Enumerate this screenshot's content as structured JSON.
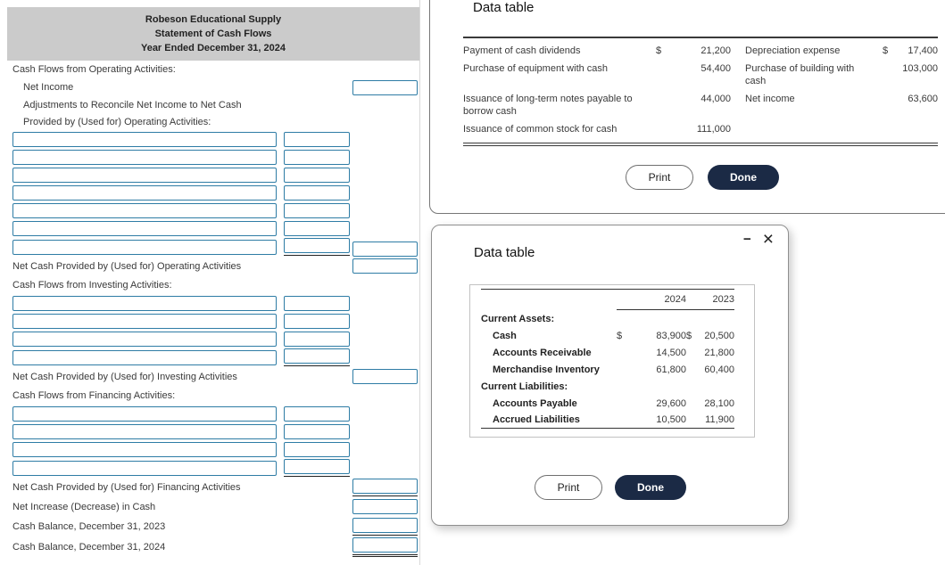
{
  "theme": {
    "input_border": "#2e7ca5",
    "done_button_bg": "#1b2a45",
    "worksheet_header_bg": "#cbcbcb"
  },
  "worksheet": {
    "header": {
      "company": "Robeson Educational Supply",
      "title": "Statement of Cash Flows",
      "period": "Year Ended December 31, 2024"
    },
    "labels": {
      "operating_section": "Cash Flows from Operating Activities:",
      "net_income": "Net Income",
      "adjustments_line1": "Adjustments to Reconcile Net Income to Net Cash",
      "adjustments_line2": "Provided by (Used for) Operating Activities:",
      "operating_total": "Net Cash Provided by (Used for) Operating Activities",
      "investing_section": "Cash Flows from Investing Activities:",
      "investing_total": "Net Cash Provided by (Used for) Investing Activities",
      "financing_section": "Cash Flows from Financing Activities:",
      "financing_total": "Net Cash Provided by (Used for) Financing Activities",
      "net_increase": "Net Increase (Decrease) in Cash",
      "balance_2023": "Cash Balance, December 31, 2023",
      "balance_2024": "Cash Balance, December 31, 2024"
    }
  },
  "dialog_transactions": {
    "title": "Data table",
    "rows_left": [
      {
        "label": "Payment of cash dividends",
        "prefix": "$",
        "value": "21,200"
      },
      {
        "label": "Purchase of equipment with cash",
        "prefix": "",
        "value": "54,400"
      },
      {
        "label": "Issuance of long-term notes payable to borrow cash",
        "prefix": "",
        "value": "44,000"
      },
      {
        "label": "Issuance of common stock for cash",
        "prefix": "",
        "value": "111,000"
      }
    ],
    "rows_right": [
      {
        "label": "Depreciation expense",
        "prefix": "$",
        "value": "17,400"
      },
      {
        "label": "Purchase of building with cash",
        "prefix": "",
        "value": "103,000"
      },
      {
        "label": "Net income",
        "prefix": "",
        "value": "63,600"
      }
    ],
    "print_label": "Print",
    "done_label": "Done"
  },
  "dialog_balances": {
    "title": "Data table",
    "minimize_icon": "−",
    "close_icon": "×",
    "col_headers": [
      "2024",
      "2023"
    ],
    "rows": [
      {
        "label": "Current Assets:"
      },
      {
        "label": "Cash",
        "d1": "$",
        "v1": "83,900",
        "d2": "$",
        "v2": "20,500"
      },
      {
        "label": "Accounts Receivable",
        "v1": "14,500",
        "v2": "21,800"
      },
      {
        "label": "Merchandise Inventory",
        "v1": "61,800",
        "v2": "60,400"
      },
      {
        "label": "Current Liabilities:"
      },
      {
        "label": "Accounts Payable",
        "v1": "29,600",
        "v2": "28,100"
      },
      {
        "label": "Accrued Liabilities",
        "v1": "10,500",
        "v2": "11,900"
      }
    ],
    "print_label": "Print",
    "done_label": "Done"
  }
}
